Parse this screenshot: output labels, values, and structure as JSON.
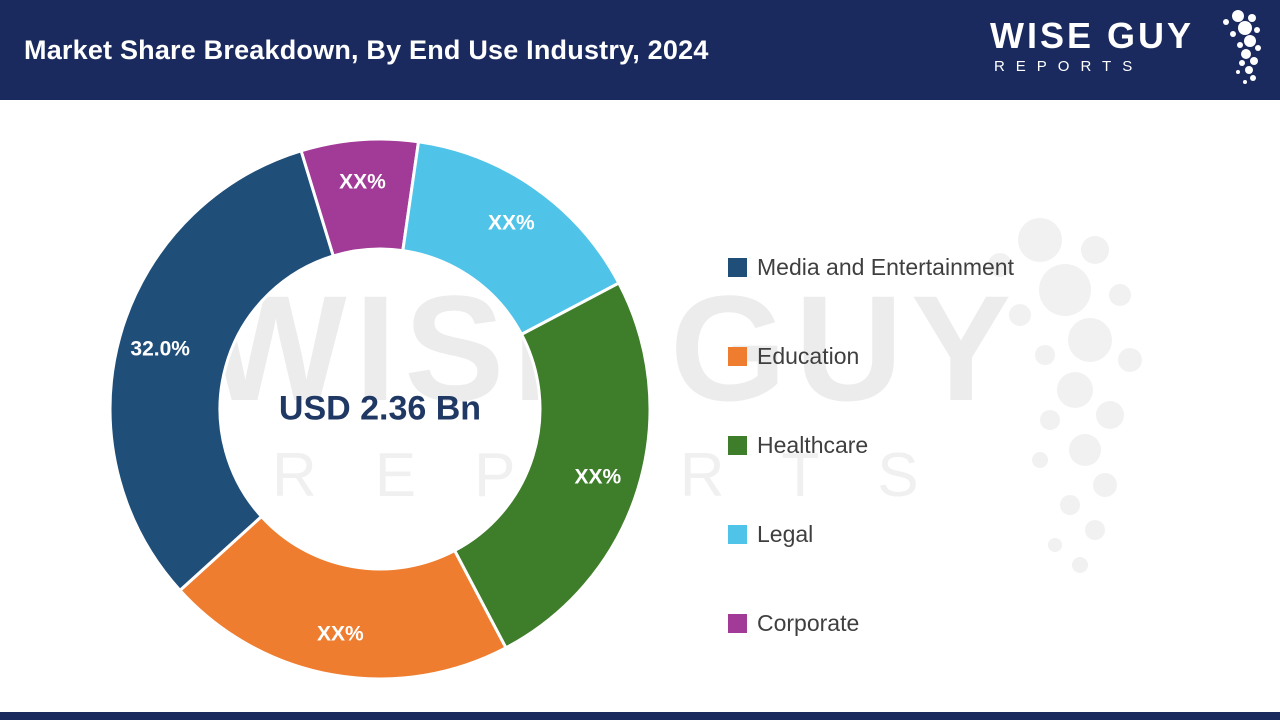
{
  "header": {
    "title": "Market Share Breakdown, By End Use Industry, 2024",
    "logo": {
      "line1": "WISE GUY",
      "line2": "REPORTS"
    }
  },
  "watermark": {
    "line1": "WISE GUY",
    "line2": "REPORTS"
  },
  "chart_data": {
    "type": "pie",
    "subtype": "donut",
    "title": "Market Share Breakdown, By End Use Industry, 2024",
    "center_label": "USD 2.36 Bn",
    "start_angle_deg": -17,
    "legend_position": "right",
    "segments": [
      {
        "label": "Corporate",
        "value": 7,
        "display": "XX%",
        "color": "#a23a97"
      },
      {
        "label": "Legal",
        "value": 15,
        "display": "XX%",
        "color": "#4fc3e8"
      },
      {
        "label": "Healthcare",
        "value": 25,
        "display": "XX%",
        "color": "#3e7d2a"
      },
      {
        "label": "Education",
        "value": 21,
        "display": "XX%",
        "color": "#ee7d2f"
      },
      {
        "label": "Media and Entertainment",
        "value": 32,
        "display": "32.0%",
        "color": "#1f4e79"
      }
    ],
    "legend_order": [
      4,
      3,
      2,
      1,
      0
    ]
  }
}
